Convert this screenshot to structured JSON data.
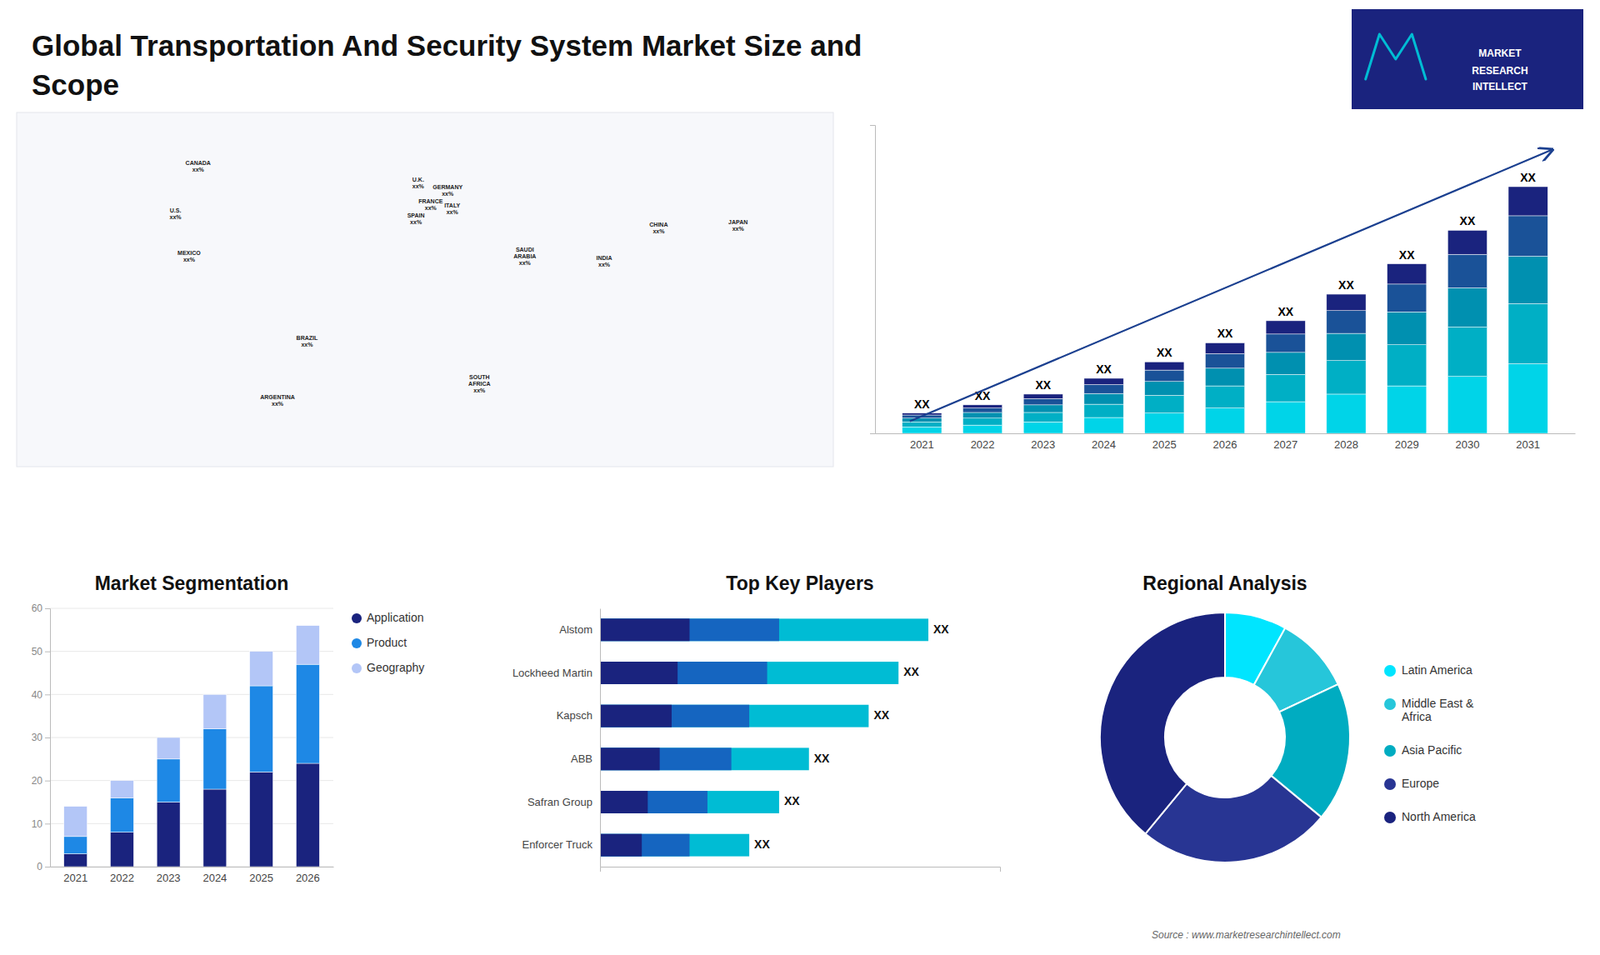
{
  "title": "Global Transportation And Security System Market Size and\nScope",
  "annotations": [
    "MARKET",
    "RESEARCH",
    "INTELLECT"
  ],
  "source": "Source : www.marketresearchintellect.com",
  "chart_data": [
    {
      "type": "map",
      "labels": [
        "CANADA\nxx%",
        "U.S.\nxx%",
        "MEXICO\nxx%",
        "BRAZIL\nxx%",
        "ARGENTINA\nxx%",
        "U.K.\nxx%",
        "FRANCE\nxx%",
        "SPAIN\nxx%",
        "GERMANY\nxx%",
        "ITALY\nxx%",
        "SAUDI\nARABIA\nxx%",
        "SOUTH\nAFRICA\nxx%",
        "CHINA\nxx%",
        "INDIA\nxx%",
        "JAPAN\nxx%"
      ],
      "x": [
        -100,
        -110,
        -104,
        -52,
        -65,
        -3,
        2.5,
        -4,
        10,
        12,
        44,
        24,
        103,
        79,
        138
      ],
      "y": [
        62,
        42,
        24,
        -12,
        -37,
        55,
        46,
        40,
        52,
        44,
        24,
        -30,
        36,
        22,
        37
      ],
      "xlim": [
        -180,
        180
      ],
      "ylim": [
        -65,
        85
      ],
      "tick_labels": false
    },
    {
      "type": "bar",
      "stacked": true,
      "categories": [
        "2021",
        "2022",
        "2023",
        "2024",
        "2025",
        "2026",
        "2027",
        "2028",
        "2029",
        "2030",
        "2031"
      ],
      "series": [
        {
          "color": "#00d4e8",
          "values": [
            1.0,
            1.3,
            1.8,
            2.5,
            3.2,
            4.0,
            5.0,
            6.2,
            7.5,
            9.0,
            11.0
          ]
        },
        {
          "color": "#00afc5",
          "values": [
            0.8,
            1.1,
            1.5,
            2.1,
            2.8,
            3.5,
            4.3,
            5.3,
            6.5,
            7.8,
            9.5
          ]
        },
        {
          "color": "#0090b0",
          "values": [
            0.6,
            0.9,
            1.2,
            1.7,
            2.2,
            2.8,
            3.5,
            4.3,
            5.2,
            6.2,
            7.5
          ]
        },
        {
          "color": "#1a5298",
          "values": [
            0.5,
            0.7,
            1.0,
            1.4,
            1.8,
            2.3,
            2.9,
            3.6,
            4.4,
            5.3,
            6.4
          ]
        },
        {
          "color": "#1a237e",
          "values": [
            0.3,
            0.5,
            0.7,
            1.0,
            1.3,
            1.7,
            2.1,
            2.6,
            3.2,
            3.8,
            4.6
          ]
        }
      ],
      "ylim": [
        0,
        48.75
      ],
      "yticks": [],
      "tick_labels": "x",
      "annotations": [
        "XX",
        "XX",
        "XX",
        "XX",
        "XX",
        "XX",
        "XX",
        "XX",
        "XX",
        "XX",
        "XX"
      ]
    },
    {
      "type": "bar",
      "stacked": true,
      "title": "Market Segmentation",
      "categories": [
        "2021",
        "2022",
        "2023",
        "2024",
        "2025",
        "2026"
      ],
      "series": [
        {
          "name": "Application",
          "color": "#1a237e",
          "values": [
            3,
            8,
            15,
            18,
            22,
            24
          ]
        },
        {
          "name": "Product",
          "color": "#1e88e5",
          "values": [
            4,
            8,
            10,
            14,
            20,
            23
          ]
        },
        {
          "name": "Geography",
          "color": "#b3c6f7",
          "values": [
            7,
            4,
            5,
            8,
            8,
            9
          ]
        }
      ],
      "ylim": [
        0,
        60
      ],
      "yticks": [
        0,
        10,
        20,
        30,
        40,
        50,
        60
      ],
      "grid": true,
      "legend": "right"
    },
    {
      "type": "bar",
      "orientation": "horizontal",
      "stacked": false,
      "title": "Top Key Players",
      "categories": [
        "Alstom",
        "Lockheed Martin",
        "Kapsch",
        "ABB",
        "Safran Group",
        "Enforcer Truck"
      ],
      "series": [
        {
          "color": "#00bcd4",
          "values": [
            5.5,
            5.0,
            4.5,
            3.5,
            3.0,
            2.5
          ]
        },
        {
          "color": "#1565c0",
          "values": [
            3.0,
            2.8,
            2.5,
            2.2,
            1.8,
            1.5
          ]
        },
        {
          "color": "#1a237e",
          "values": [
            1.5,
            1.3,
            1.2,
            1.0,
            0.8,
            0.7
          ]
        }
      ],
      "xlim": [
        0,
        6.7
      ],
      "xticks": [],
      "tick_labels": "y",
      "annotations": [
        "XX",
        "XX",
        "XX",
        "XX",
        "XX",
        "XX"
      ]
    },
    {
      "type": "pie",
      "title": "Regional Analysis",
      "labels": [
        "Latin America",
        "Middle East &\nAfrica",
        "Asia Pacific",
        "Europe",
        "North America"
      ],
      "values": [
        8,
        10,
        18,
        25,
        39
      ],
      "colors": [
        "#00e5ff",
        "#26c6da",
        "#00acc1",
        "#283593",
        "#1a237e"
      ],
      "legend": "right"
    }
  ]
}
